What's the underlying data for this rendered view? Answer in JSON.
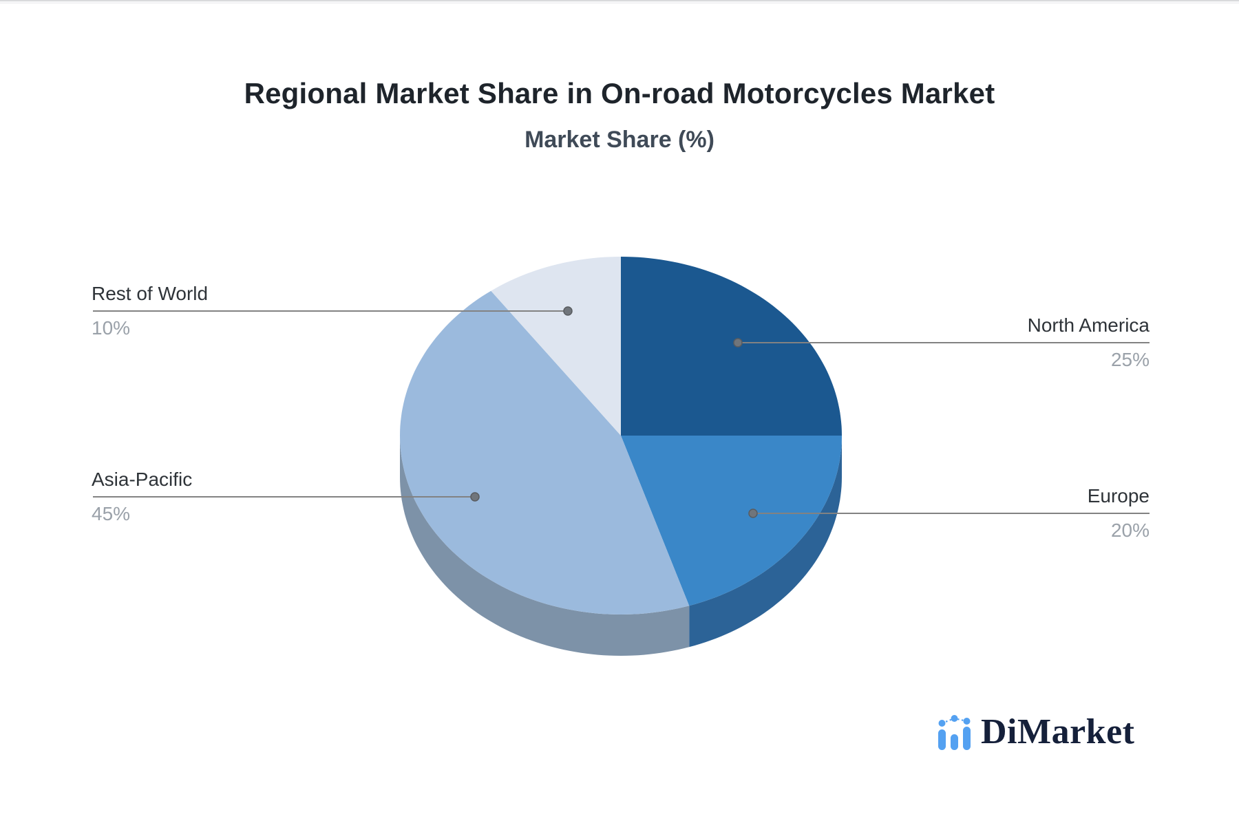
{
  "page": {
    "title": "Regional Market Share in On-road Motorcycles Market",
    "subtitle": "Market Share (%)"
  },
  "brand": {
    "name": "DiMarket",
    "icon": "bar-chart-trend-icon",
    "icon_color": "#54a1f1",
    "text_color": "#15203a"
  },
  "chart_data": {
    "type": "pie",
    "style": "3d-ellipse",
    "title": "Regional Market Share in On-road Motorcycles Market",
    "subtitle": "Market Share (%)",
    "unit": "%",
    "start_angle": "12-oclock-clockwise",
    "legend": "none",
    "categories": [
      "North America",
      "Europe",
      "Asia-Pacific",
      "Rest of World"
    ],
    "values": [
      25,
      20,
      45,
      10
    ],
    "slices": [
      {
        "label": "North America",
        "value": 25,
        "display": "25%",
        "color": "#1b5890",
        "side_color": "#164c7e",
        "callout_side": "right"
      },
      {
        "label": "Europe",
        "value": 20,
        "display": "20%",
        "color": "#3a87c8",
        "side_color": "#2c6397",
        "callout_side": "right"
      },
      {
        "label": "Asia-Pacific",
        "value": 45,
        "display": "45%",
        "color": "#9bbadd",
        "side_color": "#7d92a8",
        "callout_side": "left"
      },
      {
        "label": "Rest of World",
        "value": 10,
        "display": "10%",
        "color": "#dee5f0",
        "side_color": "#c2cbda",
        "callout_side": "left"
      }
    ],
    "label_color": "#2e3338",
    "value_color": "#9aa1a9",
    "leader_line_color": "#828282"
  }
}
